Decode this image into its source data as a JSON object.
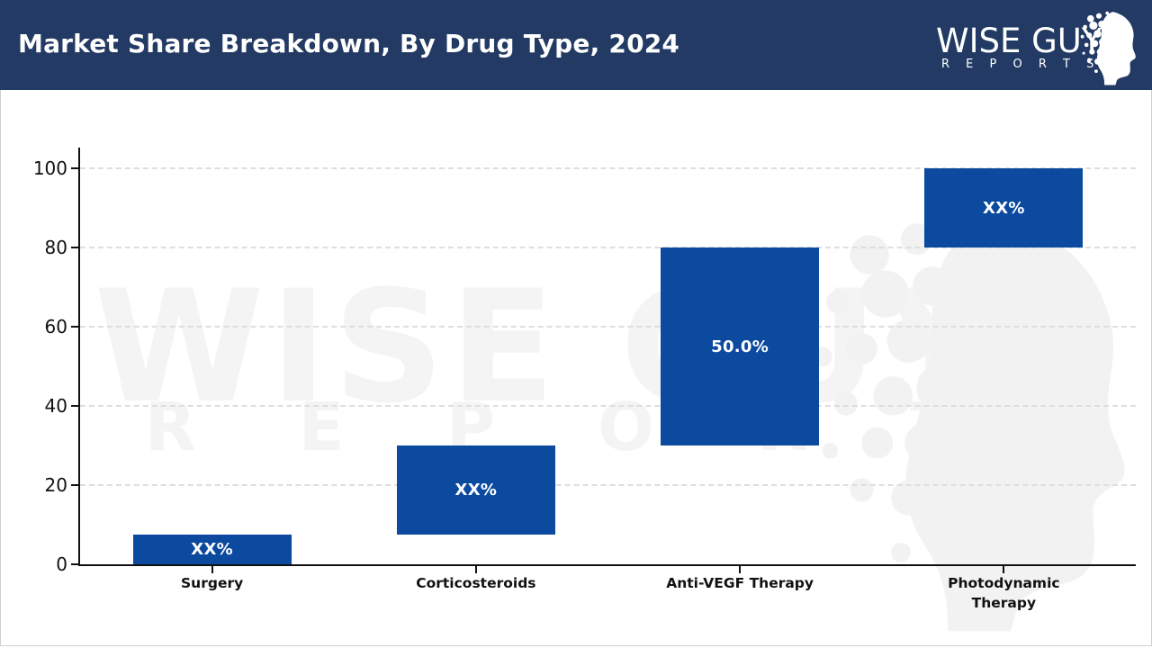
{
  "header": {
    "title": "Market Share Breakdown, By Drug Type, 2024",
    "logo": {
      "wordmark": "WISE GUY",
      "sub": "R E P O R T S"
    }
  },
  "watermark": {
    "wordmark": "WISE GUY",
    "sub": "R E P O R T S"
  },
  "chart_data": {
    "type": "bar",
    "subtype": "floating-waterfall-columns",
    "title": "Market Share Breakdown, By Drug Type, 2024",
    "categories": [
      "Surgery",
      "Corticosteroids",
      "Anti-VEGF Therapy",
      "Photodynamic\nTherapy"
    ],
    "segments": [
      {
        "category": "Surgery",
        "start": 0,
        "end": 7.5,
        "value_label": "XX%"
      },
      {
        "category": "Corticosteroids",
        "start": 7.5,
        "end": 30,
        "value_label": "XX%"
      },
      {
        "category": "Anti-VEGF Therapy",
        "start": 30,
        "end": 80,
        "value_label": "50.0%"
      },
      {
        "category": "Photodynamic Therapy",
        "start": 80,
        "end": 100,
        "value_label": "XX%"
      }
    ],
    "yticks": [
      0,
      20,
      40,
      60,
      80,
      100
    ],
    "ylim": [
      0,
      105
    ],
    "xlabel": "",
    "ylabel": "",
    "grid": "horizontal-dashed",
    "legend": "none",
    "bar_color": "#0b4a9f",
    "bar_label_color": "#ffffff"
  },
  "colors": {
    "header_bg": "#223a64",
    "bar": "#0b4a9f",
    "grid": "#dedede",
    "axis": "#111111",
    "watermark": "#f4f4f4",
    "region_border": "#cfcfcf"
  }
}
